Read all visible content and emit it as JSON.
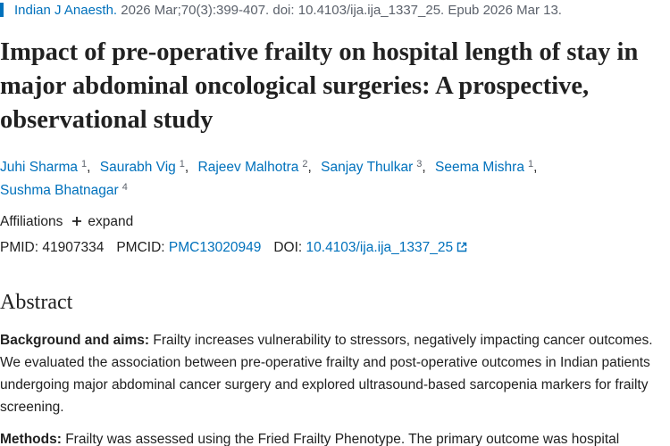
{
  "citation": {
    "journal": "Indian J Anaesth.",
    "details": "2026 Mar;70(3):399-407. doi: 10.4103/ija.ija_1337_25. Epub 2026 Mar 13."
  },
  "title": "Impact of pre-operative frailty on hospital length of stay in major abdominal oncological surgeries: A prospective, observational study",
  "author_separator": ",",
  "authors": [
    {
      "name": "Juhi Sharma",
      "affiliation": 1
    },
    {
      "name": "Saurabh Vig",
      "affiliation": 1
    },
    {
      "name": "Rajeev Malhotra",
      "affiliation": 2
    },
    {
      "name": "Sanjay Thulkar",
      "affiliation": 3
    },
    {
      "name": "Seema Mishra",
      "affiliation": 1
    },
    {
      "name": "Sushma Bhatnagar",
      "affiliation": 4
    }
  ],
  "affiliations": {
    "label": "Affiliations",
    "toggle": "expand"
  },
  "identifiers": {
    "pmid_label": "PMID:",
    "pmid": "41907334",
    "pmcid_label": "PMCID:",
    "pmcid": "PMC13020949",
    "doi_label": "DOI:",
    "doi": "10.4103/ija.ija_1337_25"
  },
  "abstract": {
    "heading": "Abstract",
    "sections": [
      {
        "label": "Background and aims:",
        "text": "Frailty increases vulnerability to stressors, negatively impacting cancer outcomes. We evaluated the association between pre-operative frailty and post-operative outcomes in Indian patients undergoing major abdominal cancer surgery and explored ultrasound-based sarcopenia markers for frailty screening."
      },
      {
        "label": "Methods:",
        "text": "Frailty was assessed using the Fried Frailty Phenotype. The primary outcome was hospital"
      }
    ]
  }
}
